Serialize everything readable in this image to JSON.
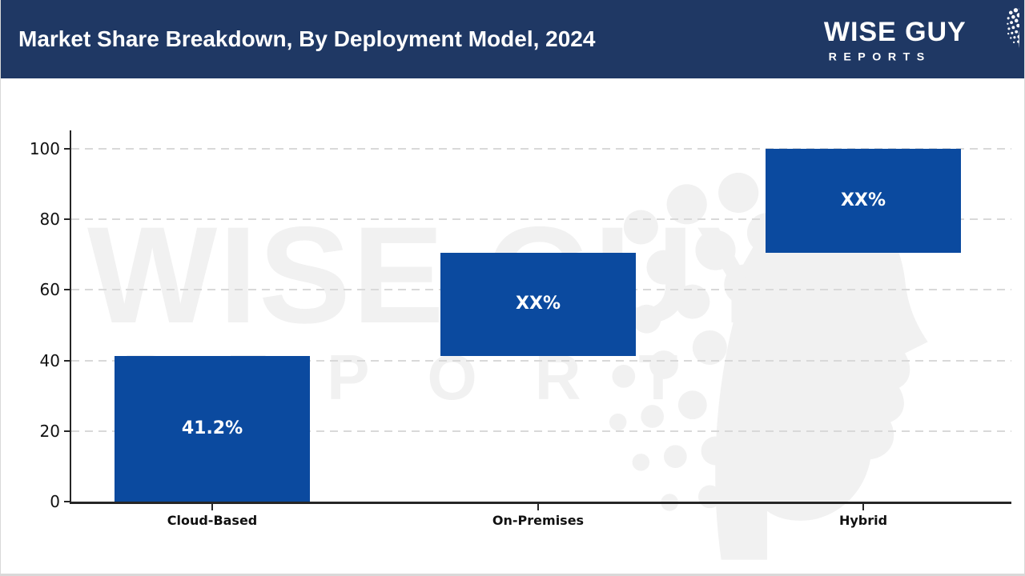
{
  "header": {
    "title": "Market Share Breakdown, By Deployment Model, 2024",
    "bg_color": "#1F3864",
    "logo": {
      "line1": "WISE GUY",
      "line2": "REPORTS"
    }
  },
  "watermark": {
    "line1": "WISE GUY",
    "line2": "REPORTS"
  },
  "chart_data": {
    "type": "bar",
    "variant": "waterfall",
    "title": "Market Share Breakdown, By Deployment Model, 2024",
    "categories": [
      "Cloud-Based",
      "On-Premises",
      "Hybrid"
    ],
    "segments": [
      {
        "category": "Cloud-Based",
        "start": 0,
        "end": 41.2,
        "label": "41.2%"
      },
      {
        "category": "On-Premises",
        "start": 41.2,
        "end": 70.6,
        "label": "XX%"
      },
      {
        "category": "Hybrid",
        "start": 70.6,
        "end": 100,
        "label": "XX%"
      }
    ],
    "xlabel": "",
    "ylabel": "",
    "ylim": [
      0,
      100
    ],
    "yticks": [
      0,
      20,
      40,
      60,
      80,
      100
    ],
    "grid": "horizontal-dashed",
    "legend": "none",
    "bar_color": "#0B4A9F",
    "bar_label_color": "#FFFFFF",
    "axis_color": "#262626",
    "grid_color": "#D9D9D9"
  }
}
